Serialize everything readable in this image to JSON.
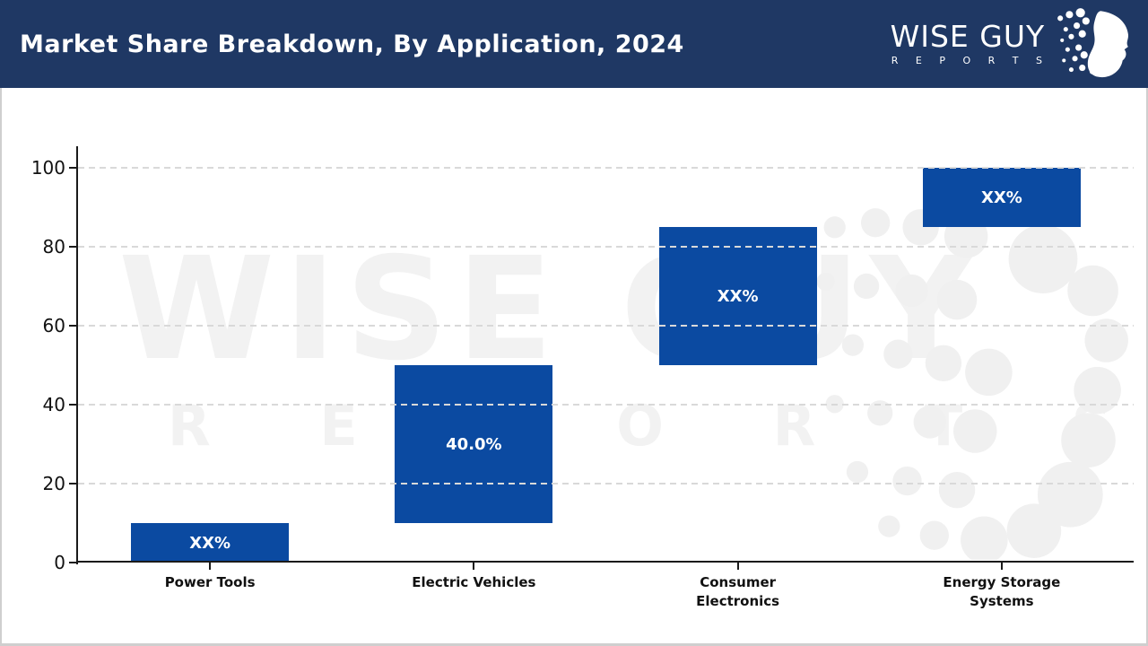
{
  "header": {
    "title": "Market Share Breakdown, By Application, 2024",
    "logo": {
      "name": "WISE GUY",
      "sub": "R E P O R T S"
    }
  },
  "watermark": {
    "line1": "WISE GUY",
    "line2": "R E P O R T S"
  },
  "chart_data": {
    "type": "bar",
    "subtype": "floating-segment-waterfall",
    "title": "Market Share Breakdown, By Application, 2024",
    "categories": [
      "Power Tools",
      "Electric Vehicles",
      "Consumer Electronics",
      "Energy Storage Systems"
    ],
    "bars": [
      {
        "category": "Power Tools",
        "start": 0,
        "end": 10,
        "label": "XX%"
      },
      {
        "category": "Electric Vehicles",
        "start": 10,
        "end": 50,
        "label": "40.0%"
      },
      {
        "category": "Consumer Electronics",
        "start": 50,
        "end": 85,
        "label": "XX%"
      },
      {
        "category": "Energy Storage Systems",
        "start": 85,
        "end": 100,
        "label": "XX%"
      }
    ],
    "ylim": [
      0,
      100
    ],
    "yticks": [
      0,
      20,
      40,
      60,
      80,
      100
    ],
    "xlabel": "",
    "ylabel": "",
    "grid": "horizontal-dashed",
    "legend": "none",
    "bar_color": "#0b4aa1",
    "bar_label_color": "#ffffff",
    "grid_color": "#d9d9d9",
    "axis_color": "#1a1a1a"
  },
  "colors": {
    "header_bg": "#1f3864",
    "page_bg": "#ffffff",
    "watermark": "#f2f2f2"
  }
}
